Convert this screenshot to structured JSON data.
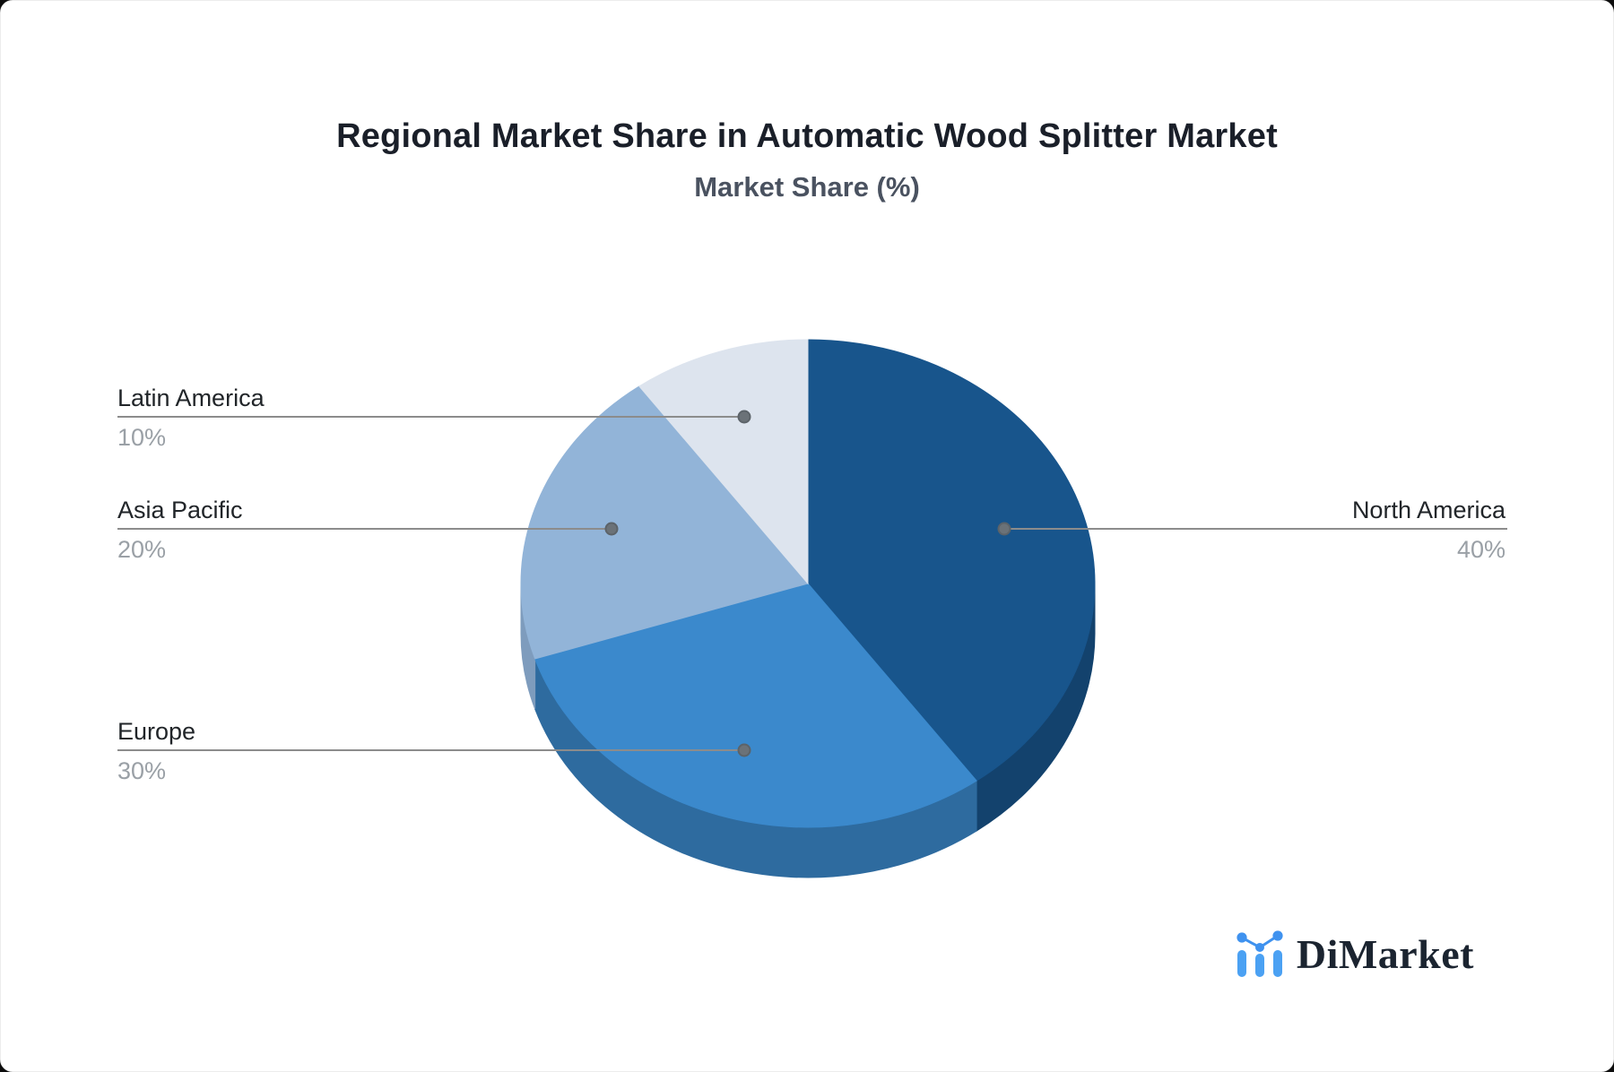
{
  "title": "Regional Market Share in Automatic Wood Splitter Market",
  "subtitle": "Market Share (%)",
  "chart_data": {
    "type": "pie",
    "style": "3d",
    "title": "Regional Market Share in Automatic Wood Splitter Market",
    "subtitle": "Market Share (%)",
    "unit": "%",
    "start_angle_deg": 90,
    "direction": "clockwise",
    "labels_layout": "leader-lines",
    "slices": [
      {
        "label": "North America",
        "value": 40,
        "display": "40%",
        "color": "#18558C",
        "side_color": "#13426D",
        "label_side": "right"
      },
      {
        "label": "Europe",
        "value": 30,
        "display": "30%",
        "color": "#3B89CC",
        "side_color": "#2E6B9F",
        "label_side": "left"
      },
      {
        "label": "Asia Pacific",
        "value": 20,
        "display": "20%",
        "color": "#92B4D8",
        "side_color": "#7E9CBD",
        "label_side": "left"
      },
      {
        "label": "Latin America",
        "value": 10,
        "display": "10%",
        "color": "#DDE4EE",
        "side_color": "#C9D3E2",
        "label_side": "left"
      }
    ]
  },
  "logo": {
    "brand": "DiMarket",
    "icon": "bar-chart-logo-icon",
    "icon_color": "#4BA1F3",
    "accent_color": "#3F92EF",
    "text_color": "#1B2430"
  },
  "styles": {
    "leader_line_color": "#8C8C8C",
    "dot_color": "#6B7278",
    "label_color": "#212529",
    "value_color": "#9AA0A6",
    "background": "#FFFFFF"
  }
}
